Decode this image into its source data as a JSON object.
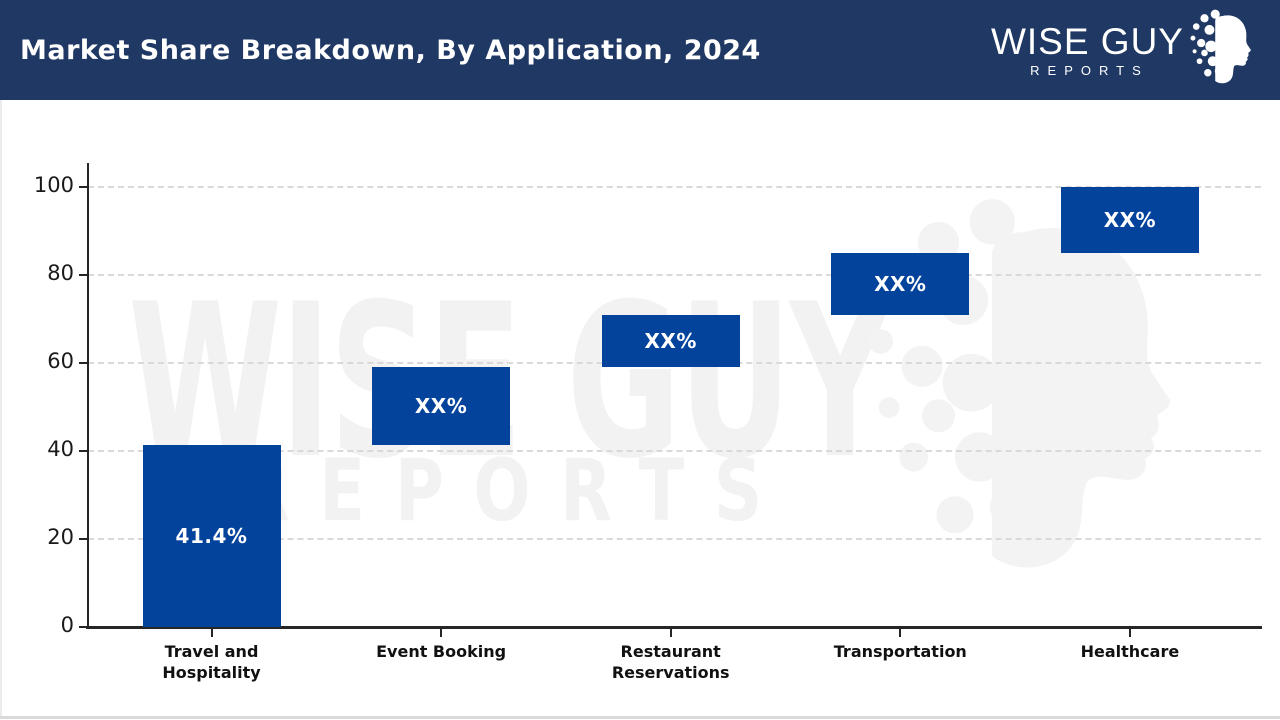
{
  "header": {
    "title": "Market Share Breakdown, By Application, 2024",
    "logo": {
      "line1": "WISE GUY",
      "line2": "REPORTS"
    },
    "bg_color": "#203864"
  },
  "watermark": {
    "line1": "WISE GUY",
    "line2": "REPORTS"
  },
  "colors": {
    "bar": "#04439C",
    "header_bg": "#203864",
    "axis": "#262626",
    "gridline": "#d9d9d9",
    "bar_label": "#ffffff",
    "watermark": "#f2f2f2"
  },
  "chart_data": {
    "type": "bar",
    "variant": "waterfall",
    "title": "Market Share Breakdown, By Application, 2024",
    "categories": [
      "Travel and Hospitality",
      "Event Booking",
      "Restaurant Reservations",
      "Transportation",
      "Healthcare"
    ],
    "segments": [
      {
        "category": "Travel and Hospitality",
        "start": 0,
        "end": 41.4,
        "label": "41.4%"
      },
      {
        "category": "Event Booking",
        "start": 41.4,
        "end": 59,
        "label": "XX%"
      },
      {
        "category": "Restaurant Reservations",
        "start": 59,
        "end": 71,
        "label": "XX%"
      },
      {
        "category": "Transportation",
        "start": 71,
        "end": 85,
        "label": "XX%"
      },
      {
        "category": "Healthcare",
        "start": 85,
        "end": 100,
        "label": "XX%"
      }
    ],
    "ylim": [
      0,
      100
    ],
    "yticks": [
      0,
      20,
      40,
      60,
      80,
      100
    ],
    "xlabel": "",
    "ylabel": "",
    "legend": "none",
    "grid": "horizontal dashed"
  }
}
